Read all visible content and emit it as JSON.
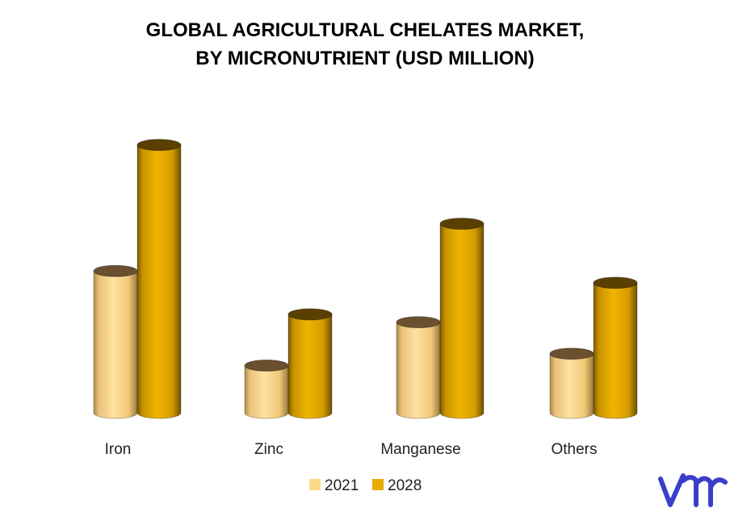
{
  "chart_data": {
    "type": "bar",
    "title": [
      "GLOBAL AGRICULTURAL CHELATES MARKET,",
      "BY MICRONUTRIENT (USD MILLION)"
    ],
    "categories": [
      "Iron",
      "Zinc",
      "Manganese",
      "Others"
    ],
    "series": [
      {
        "name": "2021",
        "values": [
          180,
          60,
          115,
          75
        ],
        "color": "#FFD98A"
      },
      {
        "name": "2028",
        "values": [
          340,
          125,
          240,
          165
        ],
        "color": "#E6AC00"
      }
    ],
    "ylim": [
      0,
      350
    ],
    "grid": false,
    "legend_position": "bottom"
  },
  "logo": {
    "text": "vmr",
    "color": "#3A3FC9"
  }
}
